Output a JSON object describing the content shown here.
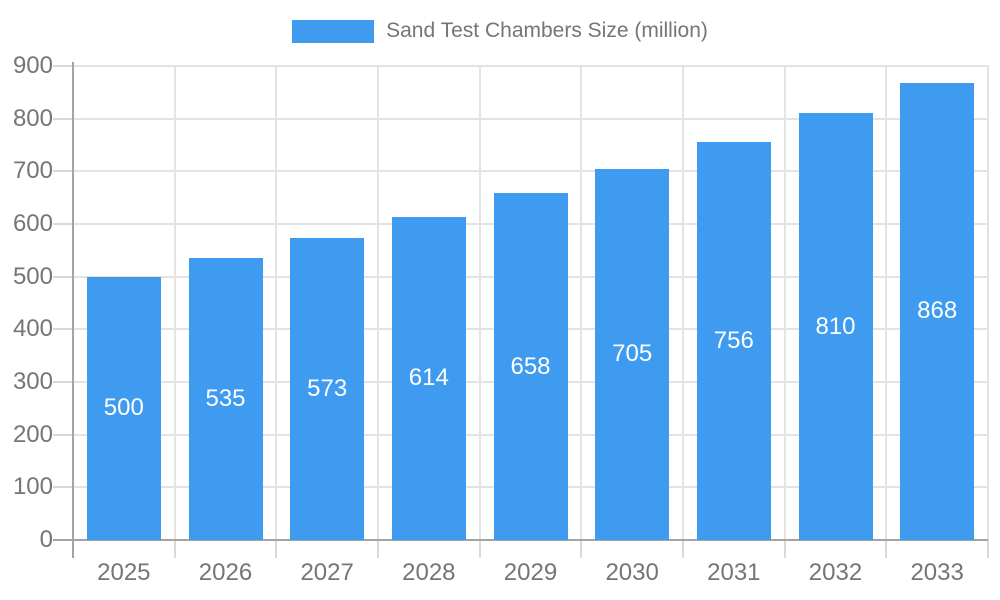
{
  "legend": {
    "label": "Sand Test Chambers Size (million)"
  },
  "chart_data": {
    "type": "bar",
    "title": "Sand Test Chambers Size (million)",
    "categories": [
      "2025",
      "2026",
      "2027",
      "2028",
      "2029",
      "2030",
      "2031",
      "2032",
      "2033"
    ],
    "values": [
      500,
      535,
      573,
      614,
      658,
      705,
      756,
      810,
      868
    ],
    "xlabel": "",
    "ylabel": "",
    "ylim": [
      0,
      900
    ],
    "ytick_step": 100,
    "yticks": [
      0,
      100,
      200,
      300,
      400,
      500,
      600,
      700,
      800,
      900
    ],
    "grid": true,
    "value_labels": "inside-center",
    "legend_position": "top-center",
    "colors": {
      "bar": "#3e9bf0",
      "axis_text": "#757575",
      "legend_text": "#757575",
      "value_label_text": "#ffffff",
      "gridline": "#e3e3e3",
      "tick_mark": "#d9d9d9",
      "axis_line": "#a3a3a3",
      "background": "#ffffff"
    }
  }
}
